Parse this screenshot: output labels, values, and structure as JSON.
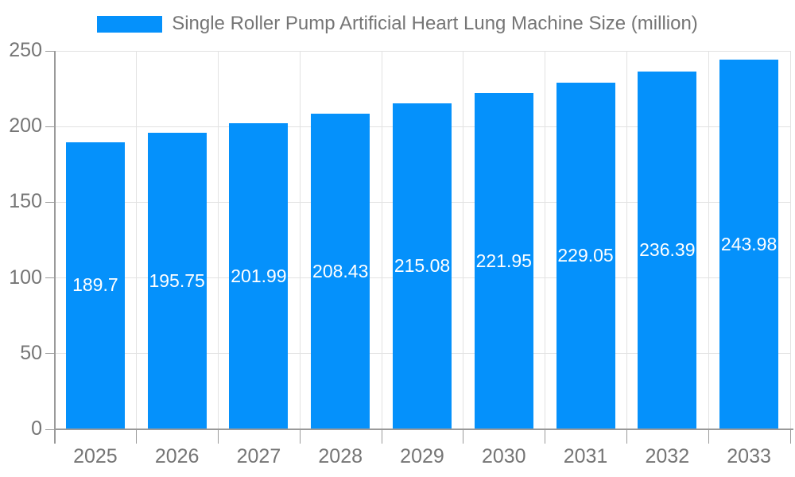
{
  "legend": {
    "label": "Single Roller Pump Artificial Heart Lung Machine Size (million)",
    "swatch_color": "#0591fb"
  },
  "chart_data": {
    "type": "bar",
    "title": "Single Roller Pump Artificial Heart Lung Machine Size (million)",
    "categories": [
      "2025",
      "2026",
      "2027",
      "2028",
      "2029",
      "2030",
      "2031",
      "2032",
      "2033"
    ],
    "values": [
      189.7,
      195.75,
      201.99,
      208.43,
      215.08,
      221.95,
      229.05,
      236.39,
      243.98
    ],
    "value_labels": [
      "189.7",
      "195.75",
      "201.99",
      "208.43",
      "215.08",
      "221.95",
      "229.05",
      "236.39",
      "243.98"
    ],
    "xlabel": "",
    "ylabel": "",
    "ylim": [
      0,
      250
    ],
    "yticks": [
      0,
      50,
      100,
      150,
      200,
      250
    ],
    "grid": true,
    "legend_position": "top",
    "bar_color": "#0591fb",
    "value_label_color": "#ffffff"
  },
  "colors": {
    "bar": "#0591fb",
    "grid_line": "#e2e2e2",
    "axis_line": "#9a9a9a",
    "tick_text": "#757575",
    "value_text": "#ffffff",
    "background": "#ffffff"
  }
}
